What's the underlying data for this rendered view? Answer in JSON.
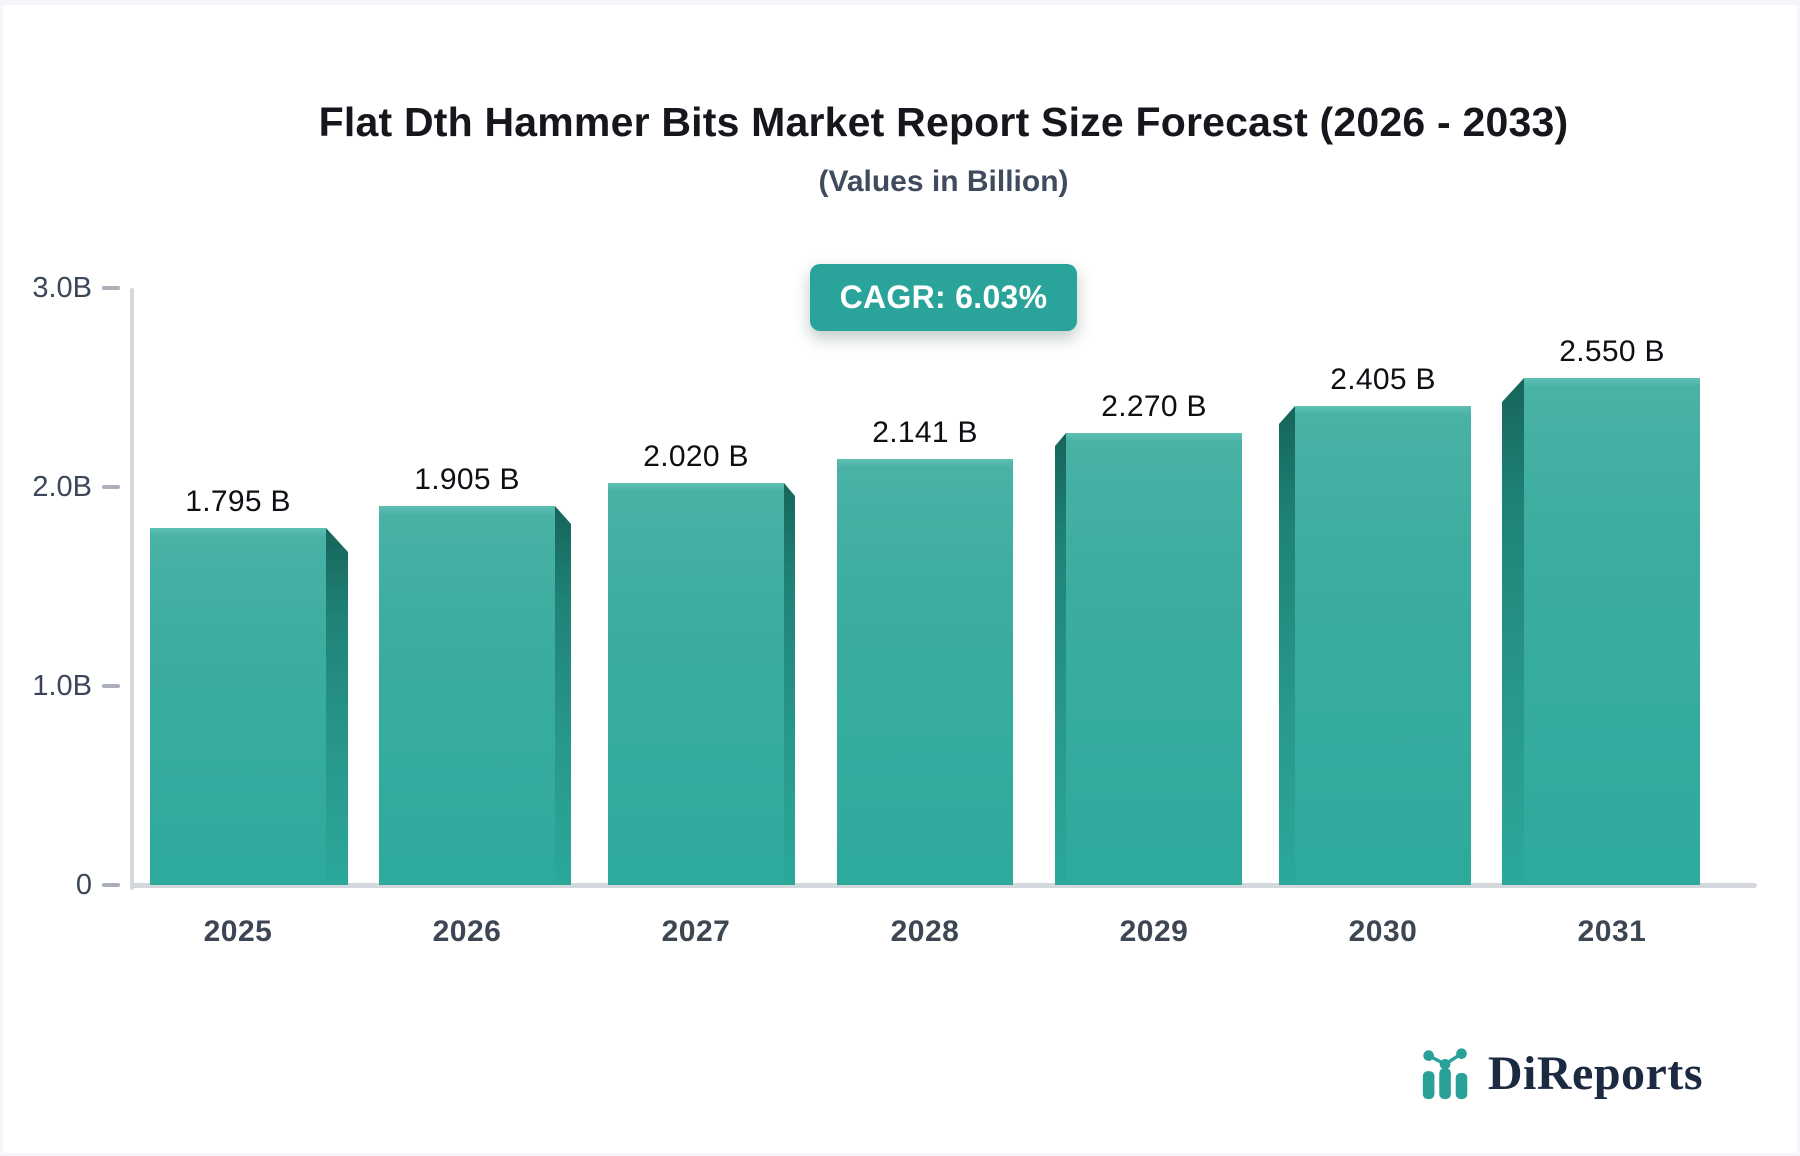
{
  "title": "Flat Dth Hammer Bits Market Report Size Forecast (2026 - 2033)",
  "subtitle": "(Values in Billion)",
  "badge": {
    "label": "CAGR: 6.03%",
    "background": "#2aa49a",
    "text_color": "#ffffff"
  },
  "brand": {
    "name": "DiReports",
    "icon": "bar-line-chart-icon",
    "icon_color": "#2aa198",
    "text_color": "#1b2a41"
  },
  "chart_data": {
    "type": "bar",
    "title": "Flat Dth Hammer Bits Market Report Size Forecast (2026 - 2033)",
    "subtitle": "(Values in Billion)",
    "unit": "Billion",
    "cagr": "6.03%",
    "categories": [
      "2025",
      "2026",
      "2027",
      "2028",
      "2029",
      "2030",
      "2031"
    ],
    "values": [
      1.795,
      1.905,
      2.02,
      2.141,
      2.27,
      2.405,
      2.55
    ],
    "value_labels": [
      "1.795 B",
      "1.905 B",
      "2.020 B",
      "2.141 B",
      "2.270 B",
      "2.405 B",
      "2.550 B"
    ],
    "ylim": [
      0,
      3
    ],
    "yticks": [
      {
        "v": 0,
        "label": "0"
      },
      {
        "v": 1,
        "label": "1.0B"
      },
      {
        "v": 2,
        "label": "2.0B"
      },
      {
        "v": 3,
        "label": "3.0B"
      }
    ],
    "grid": false,
    "legend": false,
    "bar_color_top": "#5ec0b3",
    "bar_color_bottom": "#2daa9c",
    "bar_side_color": "#1f8376",
    "axis_color": "#d4d8dd"
  }
}
